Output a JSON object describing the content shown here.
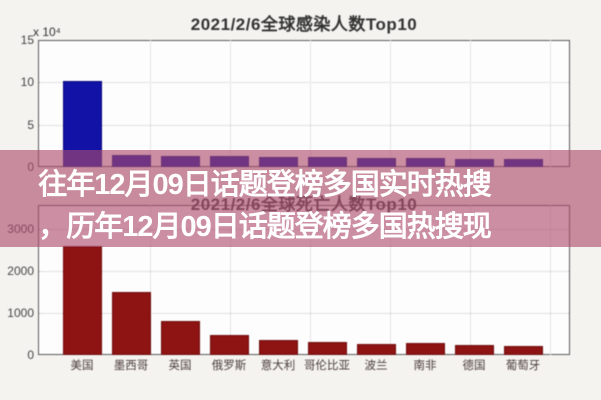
{
  "overlay": {
    "line1": "往年12月09日话题登榜多国实时热搜",
    "line2": "，历年12月09日话题登榜多国热搜现",
    "band_color_rgba": "rgba(173,74,108,0.62)",
    "text_color": "#ffffff"
  },
  "chart_data": [
    {
      "type": "bar",
      "title": "2021/2/6全球感染人数Top10",
      "y_scale_label": "x 10⁴",
      "categories": [
        "",
        "",
        "",
        "",
        "",
        "",
        "",
        "",
        "",
        ""
      ],
      "values": [
        10.2,
        1.4,
        1.35,
        1.25,
        1.2,
        1.15,
        1.1,
        1.05,
        1.0,
        0.95
      ],
      "ylim": [
        0,
        15
      ],
      "yticks": [
        0,
        5,
        10,
        15
      ],
      "grid": true,
      "bar_color": "#1212A6",
      "bar_edge_color": "#0B0B7E"
    },
    {
      "type": "bar",
      "title": "2021/2/6全球死亡人数Top10",
      "categories": [
        "美国",
        "墨西哥",
        "英国",
        "俄罗斯",
        "意大利",
        "哥伦比亚",
        "波兰",
        "南非",
        "德国",
        "葡萄牙"
      ],
      "values": [
        2600,
        1500,
        810,
        480,
        360,
        300,
        270,
        285,
        230,
        210
      ],
      "ylim": [
        0,
        3570
      ],
      "yticks": [
        0,
        1000,
        2000,
        3000
      ],
      "grid": true,
      "bar_color": "#8E1313",
      "bar_edge_color": "#6F0E0E"
    }
  ]
}
